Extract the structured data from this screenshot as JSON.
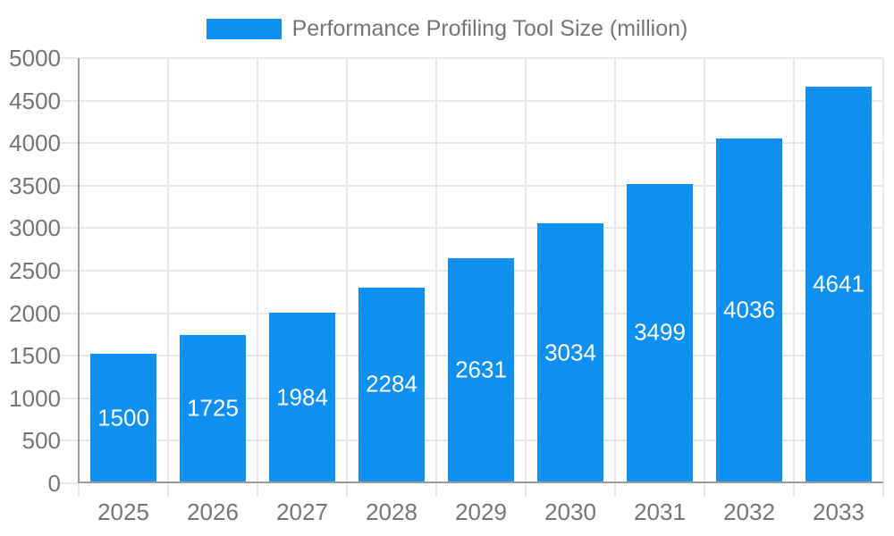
{
  "legend": {
    "label": "Performance Profiling Tool Size (million)"
  },
  "chart_data": {
    "type": "bar",
    "title": "Performance Profiling Tool Size (million)",
    "categories": [
      "2025",
      "2026",
      "2027",
      "2028",
      "2029",
      "2030",
      "2031",
      "2032",
      "2033"
    ],
    "values": [
      1500,
      1725,
      1984,
      2284,
      2631,
      3034,
      3499,
      4036,
      4641
    ],
    "bar_value_labels": [
      "1500",
      "1725",
      "1984",
      "2284",
      "2631",
      "3034",
      "3499",
      "4036",
      "4641"
    ],
    "xlabel": "",
    "ylabel": "",
    "ylim": [
      0,
      5000
    ],
    "ytick_step": 500,
    "ytick_labels": [
      "0",
      "500",
      "1000",
      "1500",
      "2000",
      "2500",
      "3000",
      "3500",
      "4000",
      "4500",
      "5000"
    ],
    "grid": true,
    "legend_position": "top",
    "value_labels_position": "inside-center",
    "colors": {
      "bar": "#0E90F2",
      "bar_label": "#FFFFFF",
      "axis_text": "#757575",
      "gridline": "#E8E8E8",
      "axis_line": "#9A9A9A",
      "background": "#FFFFFF"
    }
  }
}
